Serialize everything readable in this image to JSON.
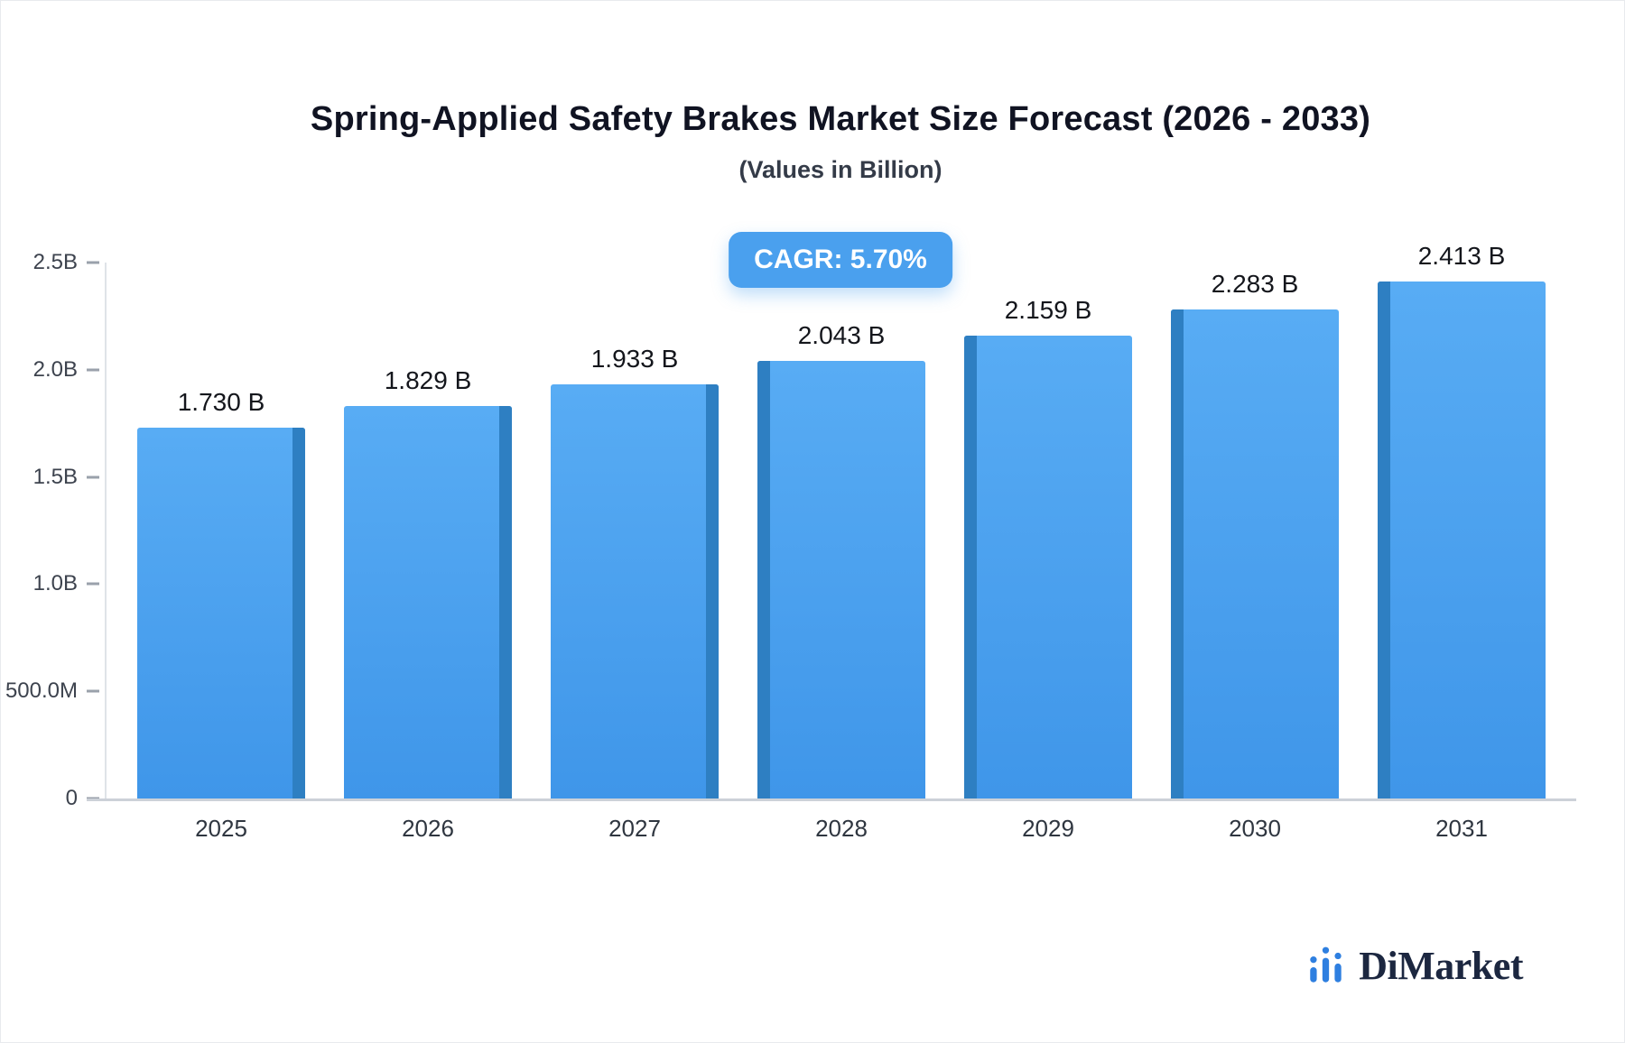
{
  "brand": {
    "name": "DiMarket"
  },
  "colors": {
    "bar": "#3f96e9",
    "bar_side": "#2e7fc2",
    "badge_bg": "#4aa0ee",
    "title_text": "#101322",
    "axis_text": "#3d434e",
    "logo_text": "#1c2740",
    "logo_icon": "#2e7fe0"
  },
  "chart_data": {
    "type": "bar",
    "title": "Spring-Applied Safety Brakes Market Size Forecast (2026 - 2033)",
    "subtitle": "(Values in Billion)",
    "cagr_label": "CAGR: 5.70%",
    "categories": [
      "2025",
      "2026",
      "2027",
      "2028",
      "2029",
      "2030",
      "2031"
    ],
    "values": [
      1.73,
      1.829,
      1.933,
      2.043,
      2.159,
      2.283,
      2.413
    ],
    "value_labels": [
      "1.730 B",
      "1.829 B",
      "1.933 B",
      "2.043 B",
      "2.159 B",
      "2.283 B",
      "2.413 B"
    ],
    "xlabel": "",
    "ylabel": "",
    "ylim": [
      0,
      2.5
    ],
    "yticks": [
      {
        "label": "2.5B",
        "value": 2.5
      },
      {
        "label": "2.0B",
        "value": 2.0
      },
      {
        "label": "1.5B",
        "value": 1.5
      },
      {
        "label": "1.0B",
        "value": 1.0
      },
      {
        "label": "500.0M",
        "value": 0.5
      },
      {
        "label": "0",
        "value": 0
      }
    ],
    "grid": false,
    "legend": false
  }
}
